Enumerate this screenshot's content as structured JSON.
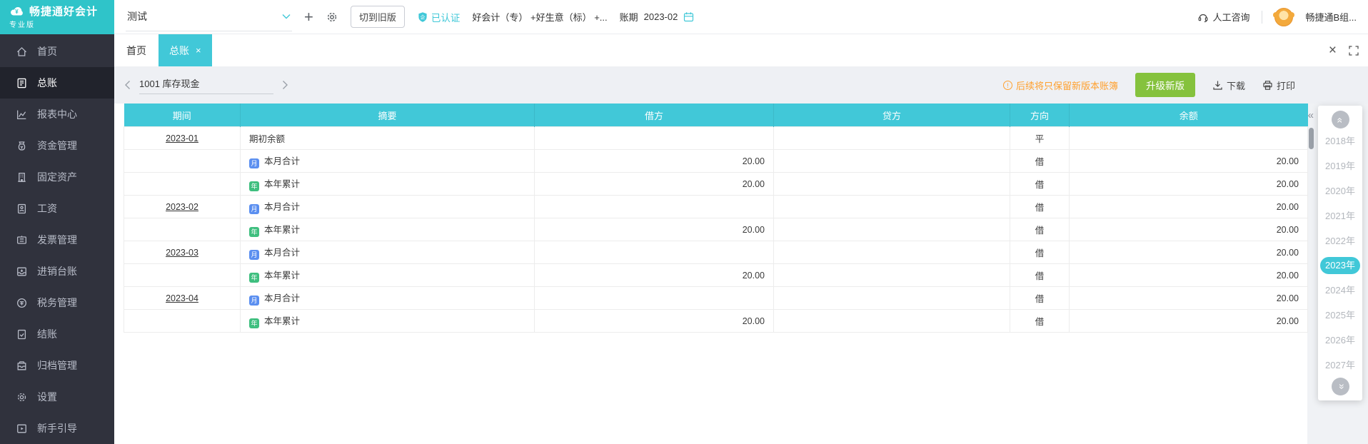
{
  "topbar": {
    "brand": "畅捷通好会计",
    "brand_edition": "专业版",
    "account_set": "测试",
    "switch_old": "切到旧版",
    "certified": "已认证",
    "products": "好会计（专） +好生意（标） +...",
    "period_label": "账期",
    "period_value": "2023-02",
    "support": "人工咨询",
    "username": "畅捷通B组..."
  },
  "sidebar": {
    "items": [
      {
        "label": "首页",
        "icon": "home",
        "active": false
      },
      {
        "label": "总账",
        "icon": "ledger",
        "active": true
      },
      {
        "label": "报表中心",
        "icon": "report",
        "active": false
      },
      {
        "label": "资金管理",
        "icon": "funds",
        "active": false
      },
      {
        "label": "固定资产",
        "icon": "assets",
        "active": false
      },
      {
        "label": "工资",
        "icon": "salary",
        "active": false
      },
      {
        "label": "发票管理",
        "icon": "invoice",
        "active": false
      },
      {
        "label": "进销台账",
        "icon": "trade",
        "active": false
      },
      {
        "label": "税务管理",
        "icon": "tax",
        "active": false
      },
      {
        "label": "结账",
        "icon": "closing",
        "active": false
      },
      {
        "label": "归档管理",
        "icon": "archive",
        "active": false
      },
      {
        "label": "设置",
        "icon": "settings",
        "active": false
      },
      {
        "label": "新手引导",
        "icon": "guide",
        "active": false
      }
    ]
  },
  "tabs": [
    {
      "label": "首页",
      "active": false
    },
    {
      "label": "总账",
      "active": true,
      "closable": true
    }
  ],
  "toolbar": {
    "account": "1001 库存现金",
    "notice": "后续将只保留新版本账簿",
    "upgrade": "升级新版",
    "download": "下载",
    "print": "打印"
  },
  "table": {
    "columns": [
      "期间",
      "摘要",
      "借方",
      "贷方",
      "方向",
      "余额"
    ],
    "rows": [
      {
        "period": "2023-01",
        "summary": "期初余额",
        "tag": "",
        "debit": "",
        "credit": "",
        "direction": "平",
        "balance": ""
      },
      {
        "period": "",
        "summary": "本月合计",
        "tag": "month",
        "debit": "20.00",
        "credit": "",
        "direction": "借",
        "balance": "20.00"
      },
      {
        "period": "",
        "summary": "本年累计",
        "tag": "year",
        "debit": "20.00",
        "credit": "",
        "direction": "借",
        "balance": "20.00"
      },
      {
        "period": "2023-02",
        "summary": "本月合计",
        "tag": "month",
        "debit": "",
        "credit": "",
        "direction": "借",
        "balance": "20.00"
      },
      {
        "period": "",
        "summary": "本年累计",
        "tag": "year",
        "debit": "20.00",
        "credit": "",
        "direction": "借",
        "balance": "20.00"
      },
      {
        "period": "2023-03",
        "summary": "本月合计",
        "tag": "month",
        "debit": "",
        "credit": "",
        "direction": "借",
        "balance": "20.00"
      },
      {
        "period": "",
        "summary": "本年累计",
        "tag": "year",
        "debit": "20.00",
        "credit": "",
        "direction": "借",
        "balance": "20.00"
      },
      {
        "period": "2023-04",
        "summary": "本月合计",
        "tag": "month",
        "debit": "",
        "credit": "",
        "direction": "借",
        "balance": "20.00"
      },
      {
        "period": "",
        "summary": "本年累计",
        "tag": "year",
        "debit": "20.00",
        "credit": "",
        "direction": "借",
        "balance": "20.00"
      }
    ],
    "month_tag_char": "月",
    "year_tag_char": "年"
  },
  "year_panel": {
    "years": [
      "2018年",
      "2019年",
      "2020年",
      "2021年",
      "2022年",
      "2023年",
      "2024年",
      "2025年",
      "2026年",
      "2027年"
    ],
    "selected": "2023年"
  },
  "colors": {
    "accent_cyan": "#41c8d8",
    "logo_teal": "#2fc4c9",
    "sidebar_bg": "#30323d",
    "upgrade_green": "#85c23d",
    "notice_orange": "#ffa02e",
    "month_tag_blue": "#5b8ff0",
    "year_tag_green": "#3fbf7f"
  }
}
